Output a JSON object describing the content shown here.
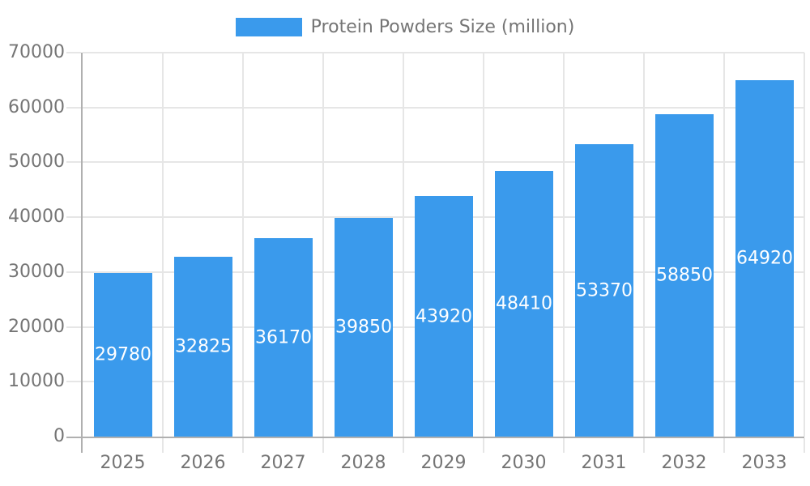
{
  "chart_data": {
    "type": "bar",
    "title": "Protein Powders Size (million)",
    "categories": [
      "2025",
      "2026",
      "2027",
      "2028",
      "2029",
      "2030",
      "2031",
      "2032",
      "2033"
    ],
    "series": [
      {
        "name": "Protein Powders Size (million)",
        "values": [
          29780,
          32825,
          36170,
          39850,
          43920,
          48410,
          53370,
          58850,
          64920
        ]
      }
    ],
    "xlabel": "",
    "ylabel": "",
    "ylim": [
      0,
      70000
    ],
    "yticks": [
      0,
      10000,
      20000,
      30000,
      40000,
      50000,
      60000,
      70000
    ],
    "grid": true,
    "legend_position": "top",
    "value_labels": "inside-center",
    "colors": {
      "bar": "#3A9AEC",
      "value_label": "#ffffff",
      "axis_text": "#757575",
      "gridline": "#e6e6e6",
      "axis_line": "#b0b0b0",
      "background": "#ffffff"
    }
  }
}
